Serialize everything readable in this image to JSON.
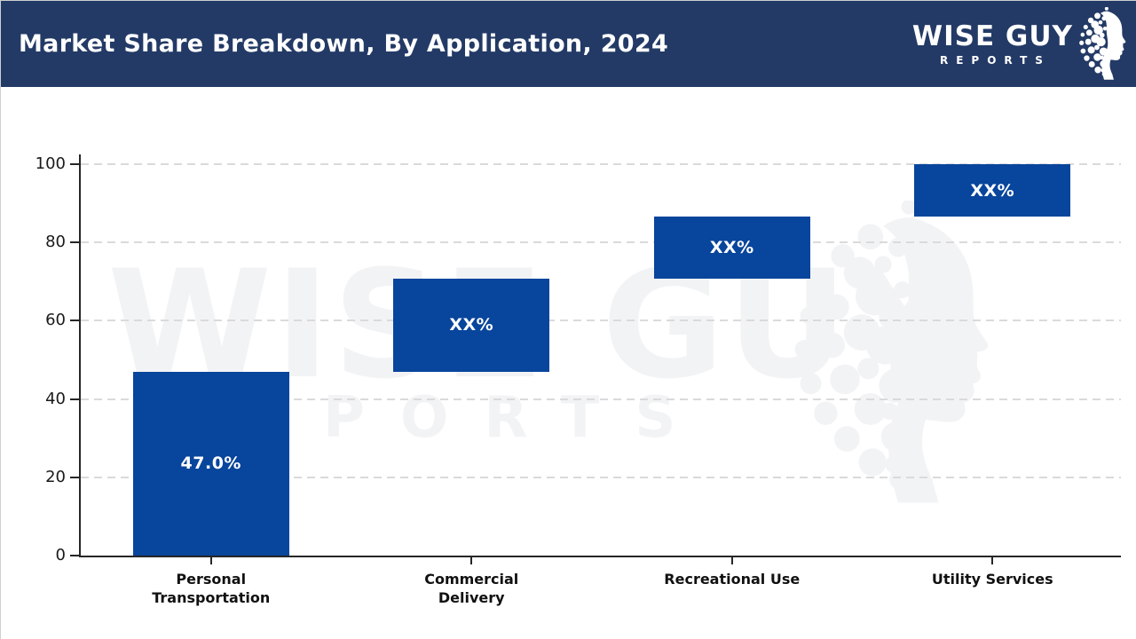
{
  "header": {
    "title": "Market Share Breakdown, By Application, 2024",
    "logo": {
      "line1": "WISE GUY",
      "line2": "REPORTS"
    }
  },
  "watermark": {
    "line1": "WISE GUY",
    "line2": "REPORTS"
  },
  "colors": {
    "header_bg": "#233a66",
    "bar_blue": "#08459c",
    "watermark_gray": "#f2f3f5",
    "grid_gray": "#dadada",
    "axis_dark": "#262626"
  },
  "chart_data": {
    "type": "bar",
    "subtype": "waterfall",
    "title": "Market Share Breakdown, By Application, 2024",
    "xlabel": "",
    "ylabel": "",
    "ylim": [
      0,
      100
    ],
    "yticks": [
      0,
      20,
      40,
      60,
      80,
      100
    ],
    "grid": "horizontal dashed",
    "legend": "none",
    "bar_color": "#08459c",
    "categories": [
      "Personal Transportation",
      "Commercial Delivery",
      "Recreational Use",
      "Utility Services"
    ],
    "segments": [
      {
        "category": "Personal Transportation",
        "label_lines": [
          "Personal",
          "Transportation"
        ],
        "start": 0.0,
        "end": 47.0,
        "value_label": "47.0%"
      },
      {
        "category": "Commercial Delivery",
        "label_lines": [
          "Commercial",
          "Delivery"
        ],
        "start": 47.0,
        "end": 70.7,
        "value_label": "XX%"
      },
      {
        "category": "Recreational Use",
        "label_lines": [
          "Recreational Use"
        ],
        "start": 70.7,
        "end": 86.6,
        "value_label": "XX%"
      },
      {
        "category": "Utility Services",
        "label_lines": [
          "Utility Services"
        ],
        "start": 86.6,
        "end": 100.0,
        "value_label": "XX%"
      }
    ]
  }
}
